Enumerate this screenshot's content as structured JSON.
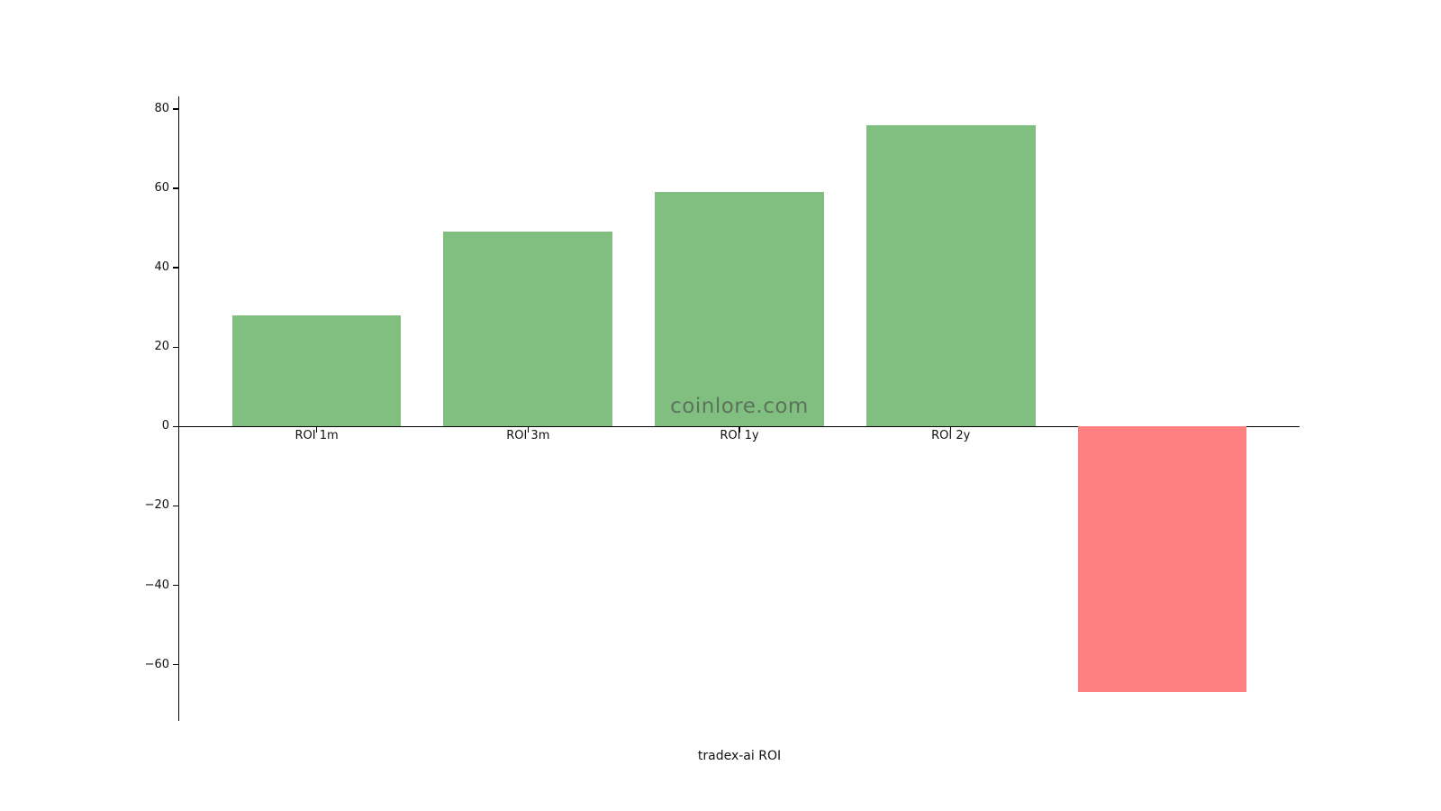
{
  "page": {
    "background": "#ffffff"
  },
  "watermark": {
    "text": "coinlore.com",
    "color": "#454545"
  },
  "chart_data": {
    "type": "bar",
    "title": "tradex-ai ROI",
    "categories": [
      "ROI 1m",
      "ROI 3m",
      "ROI 1y",
      "ROI 2y",
      ""
    ],
    "values": [
      28,
      49,
      59,
      76,
      -67
    ],
    "series": [
      {
        "name": "tradex-ai ROI",
        "values": [
          28,
          49,
          59,
          76,
          -67
        ]
      }
    ],
    "bar_colors": [
      "#80bf80",
      "#80bf80",
      "#80bf80",
      "#80bf80",
      "#ff8080"
    ],
    "positive_color": "#80bf80",
    "negative_color": "#ff8080",
    "yticks": [
      80,
      60,
      40,
      20,
      0,
      -20,
      -40,
      -60
    ],
    "ylim": [
      -74,
      83
    ],
    "xlabel": "",
    "ylabel": "",
    "grid": false,
    "legend": "none",
    "axis_color": "#000000",
    "tick_text_color": "#111111"
  }
}
